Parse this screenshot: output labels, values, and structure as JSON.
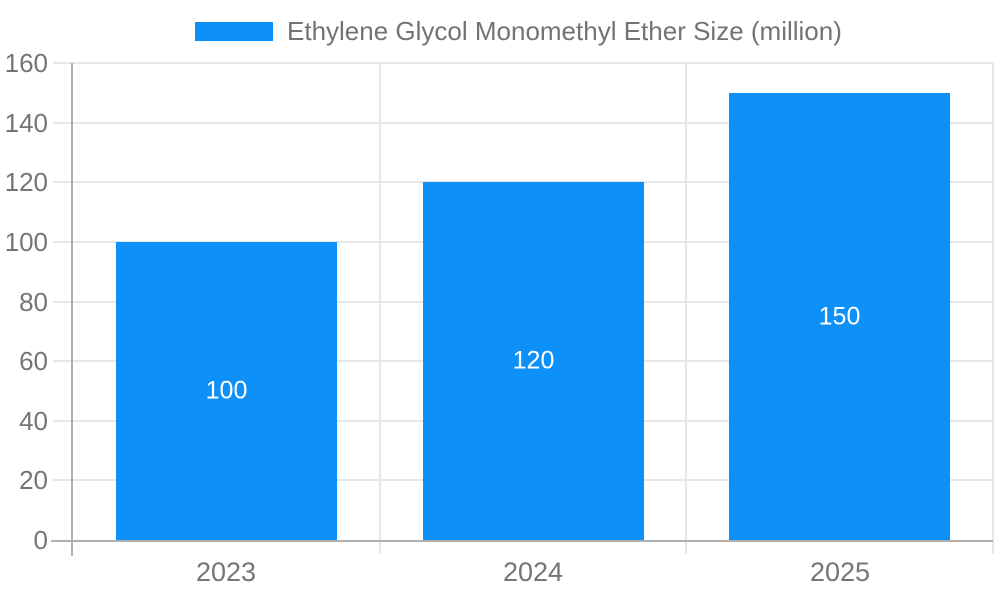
{
  "chart_data": {
    "type": "bar",
    "title": "Ethylene Glycol Monomethyl Ether Size (million)",
    "legend": [
      {
        "label": "Ethylene Glycol Monomethyl Ether Size (million)",
        "color": "#0e90f9"
      }
    ],
    "legend_position": "top",
    "categories": [
      "2023",
      "2024",
      "2025"
    ],
    "values": [
      100,
      120,
      150
    ],
    "bar_value_labels": [
      "100",
      "120",
      "150"
    ],
    "xlabel": "",
    "ylabel": "",
    "ylim": [
      0,
      160
    ],
    "yticks": [
      0,
      20,
      40,
      60,
      80,
      100,
      120,
      140,
      160
    ],
    "grid": true,
    "colors": {
      "bar": "#0e90f9",
      "bar_value_text": "#ffffff",
      "axis_line": "#b0b0b0",
      "gridline": "#e7e7e7",
      "tick_label": "#757575",
      "legend_text": "#737373"
    }
  }
}
